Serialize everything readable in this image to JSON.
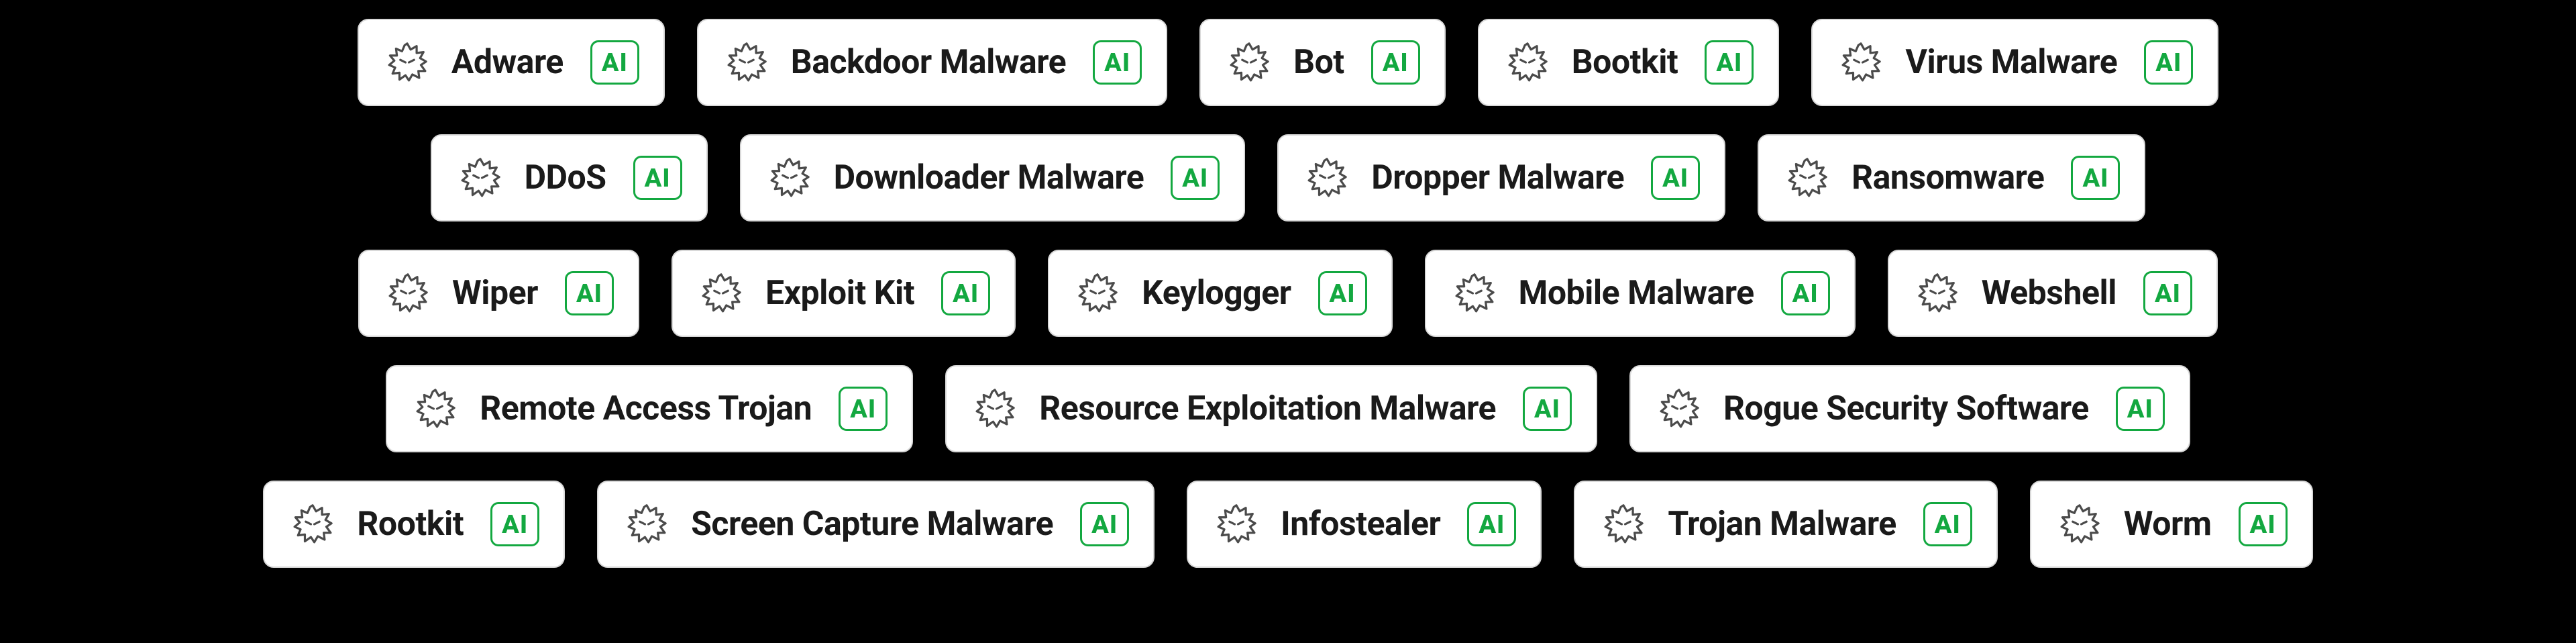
{
  "badge_text": "AI",
  "badge_color": "#13a840",
  "chip_bg": "#ffffff",
  "chip_border": "#d9d9d9",
  "icon_stroke": "#4b4b4b",
  "rows": [
    [
      {
        "name": "adware",
        "label": "Adware"
      },
      {
        "name": "backdoor-malware",
        "label": "Backdoor Malware"
      },
      {
        "name": "bot",
        "label": "Bot"
      },
      {
        "name": "bootkit",
        "label": "Bootkit"
      },
      {
        "name": "virus-malware",
        "label": "Virus Malware"
      }
    ],
    [
      {
        "name": "ddos",
        "label": "DDoS"
      },
      {
        "name": "downloader-malware",
        "label": "Downloader Malware"
      },
      {
        "name": "dropper-malware",
        "label": "Dropper Malware"
      },
      {
        "name": "ransomware",
        "label": "Ransomware"
      }
    ],
    [
      {
        "name": "wiper",
        "label": "Wiper"
      },
      {
        "name": "exploit-kit",
        "label": "Exploit Kit"
      },
      {
        "name": "keylogger",
        "label": "Keylogger"
      },
      {
        "name": "mobile-malware",
        "label": "Mobile Malware"
      },
      {
        "name": "webshell",
        "label": "Webshell"
      }
    ],
    [
      {
        "name": "remote-access-trojan",
        "label": "Remote Access Trojan"
      },
      {
        "name": "resource-exploitation-malware",
        "label": "Resource Exploitation Malware"
      },
      {
        "name": "rogue-security-software",
        "label": "Rogue Security Software"
      }
    ],
    [
      {
        "name": "rootkit",
        "label": "Rootkit"
      },
      {
        "name": "screen-capture-malware",
        "label": "Screen Capture Malware"
      },
      {
        "name": "infostealer",
        "label": "Infostealer"
      },
      {
        "name": "trojan-malware",
        "label": "Trojan Malware"
      },
      {
        "name": "worm",
        "label": "Worm"
      }
    ]
  ]
}
